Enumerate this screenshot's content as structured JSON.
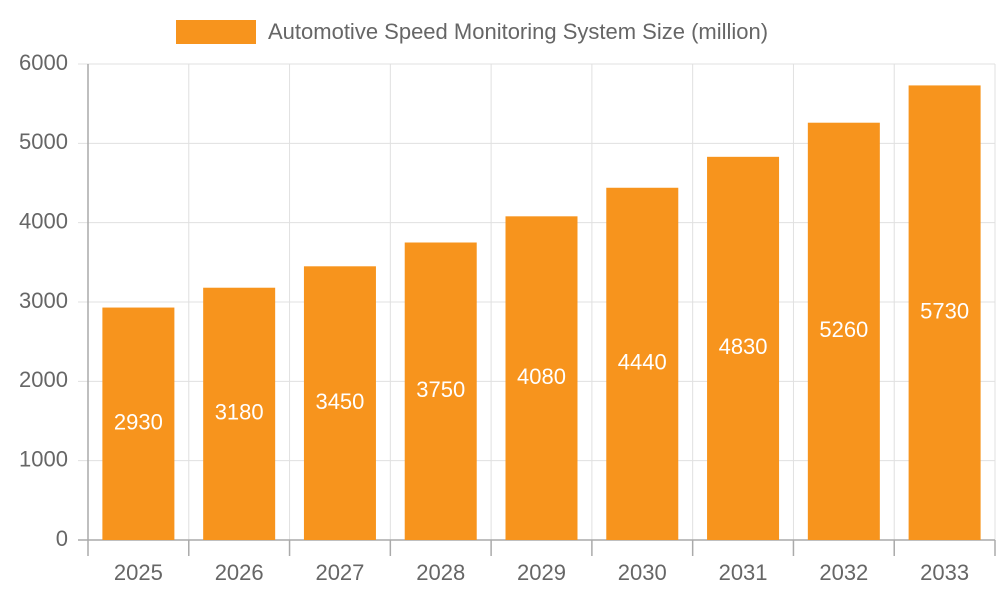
{
  "chart_data": {
    "type": "bar",
    "categories": [
      "2025",
      "2026",
      "2027",
      "2028",
      "2029",
      "2030",
      "2031",
      "2032",
      "2033"
    ],
    "series": [
      {
        "name": "Automotive Speed Monitoring System Size (million)",
        "color": "#f7941d",
        "values": [
          2930,
          3180,
          3450,
          3750,
          4080,
          4440,
          4830,
          5260,
          5730
        ]
      }
    ],
    "ylim": [
      0,
      6000
    ],
    "yticks": [
      0,
      1000,
      2000,
      3000,
      4000,
      5000,
      6000
    ],
    "grid": true,
    "legend": "top"
  }
}
